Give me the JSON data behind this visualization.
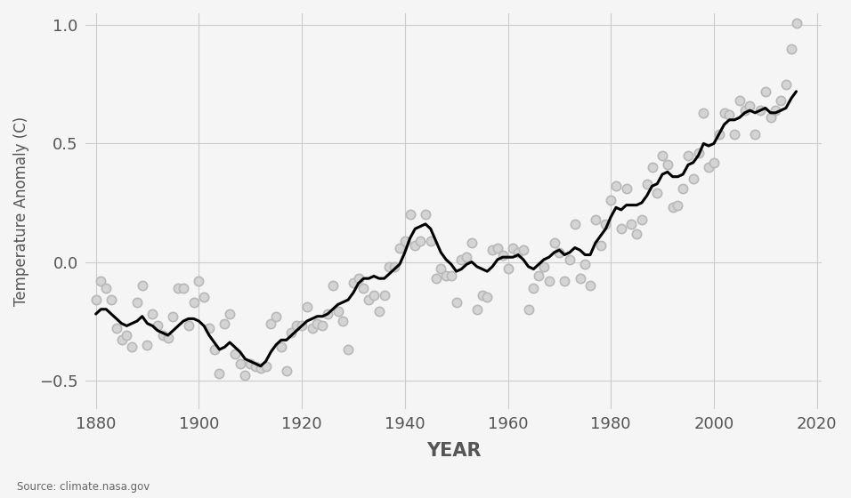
{
  "title": "",
  "xlabel": "YEAR",
  "ylabel": "Temperature Anomaly (C)",
  "source_text": "Source: climate.nasa.gov",
  "xlim": [
    1878,
    2021
  ],
  "ylim": [
    -0.62,
    1.05
  ],
  "yticks": [
    -0.5,
    0.0,
    0.5,
    1.0
  ],
  "xticks": [
    1880,
    1900,
    1920,
    1940,
    1960,
    1980,
    2000,
    2020
  ],
  "annual_data": {
    "years": [
      1880,
      1881,
      1882,
      1883,
      1884,
      1885,
      1886,
      1887,
      1888,
      1889,
      1890,
      1891,
      1892,
      1893,
      1894,
      1895,
      1896,
      1897,
      1898,
      1899,
      1900,
      1901,
      1902,
      1903,
      1904,
      1905,
      1906,
      1907,
      1908,
      1909,
      1910,
      1911,
      1912,
      1913,
      1914,
      1915,
      1916,
      1917,
      1918,
      1919,
      1920,
      1921,
      1922,
      1923,
      1924,
      1925,
      1926,
      1927,
      1928,
      1929,
      1930,
      1931,
      1932,
      1933,
      1934,
      1935,
      1936,
      1937,
      1938,
      1939,
      1940,
      1941,
      1942,
      1943,
      1944,
      1945,
      1946,
      1947,
      1948,
      1949,
      1950,
      1951,
      1952,
      1953,
      1954,
      1955,
      1956,
      1957,
      1958,
      1959,
      1960,
      1961,
      1962,
      1963,
      1964,
      1965,
      1966,
      1967,
      1968,
      1969,
      1970,
      1971,
      1972,
      1973,
      1974,
      1975,
      1976,
      1977,
      1978,
      1979,
      1980,
      1981,
      1982,
      1983,
      1984,
      1985,
      1986,
      1987,
      1988,
      1989,
      1990,
      1991,
      1992,
      1993,
      1994,
      1995,
      1996,
      1997,
      1998,
      1999,
      2000,
      2001,
      2002,
      2003,
      2004,
      2005,
      2006,
      2007,
      2008,
      2009,
      2010,
      2011,
      2012,
      2013,
      2014,
      2015,
      2016
    ],
    "anomalies": [
      -0.16,
      -0.08,
      -0.11,
      -0.16,
      -0.28,
      -0.33,
      -0.31,
      -0.36,
      -0.17,
      -0.1,
      -0.35,
      -0.22,
      -0.27,
      -0.31,
      -0.32,
      -0.23,
      -0.11,
      -0.11,
      -0.27,
      -0.17,
      -0.08,
      -0.15,
      -0.28,
      -0.37,
      -0.47,
      -0.26,
      -0.22,
      -0.39,
      -0.43,
      -0.48,
      -0.43,
      -0.44,
      -0.45,
      -0.44,
      -0.26,
      -0.23,
      -0.36,
      -0.46,
      -0.3,
      -0.27,
      -0.27,
      -0.19,
      -0.28,
      -0.26,
      -0.27,
      -0.22,
      -0.1,
      -0.21,
      -0.25,
      -0.37,
      -0.09,
      -0.07,
      -0.11,
      -0.16,
      -0.14,
      -0.21,
      -0.14,
      -0.02,
      -0.02,
      0.06,
      0.09,
      0.2,
      0.07,
      0.09,
      0.2,
      0.09,
      -0.07,
      -0.03,
      -0.06,
      -0.06,
      -0.17,
      0.01,
      0.02,
      0.08,
      -0.2,
      -0.14,
      -0.15,
      0.05,
      0.06,
      0.03,
      -0.03,
      0.06,
      0.04,
      0.05,
      -0.2,
      -0.11,
      -0.06,
      -0.02,
      -0.08,
      0.08,
      0.04,
      -0.08,
      0.01,
      0.16,
      -0.07,
      -0.01,
      -0.1,
      0.18,
      0.07,
      0.16,
      0.26,
      0.32,
      0.14,
      0.31,
      0.16,
      0.12,
      0.18,
      0.33,
      0.4,
      0.29,
      0.45,
      0.41,
      0.23,
      0.24,
      0.31,
      0.45,
      0.35,
      0.46,
      0.63,
      0.4,
      0.42,
      0.54,
      0.63,
      0.62,
      0.54,
      0.68,
      0.64,
      0.66,
      0.54,
      0.64,
      0.72,
      0.61,
      0.64,
      0.68,
      0.75,
      0.9,
      1.01
    ]
  },
  "smooth_data": {
    "years": [
      1880,
      1881,
      1882,
      1883,
      1884,
      1885,
      1886,
      1887,
      1888,
      1889,
      1890,
      1891,
      1892,
      1893,
      1894,
      1895,
      1896,
      1897,
      1898,
      1899,
      1900,
      1901,
      1902,
      1903,
      1904,
      1905,
      1906,
      1907,
      1908,
      1909,
      1910,
      1911,
      1912,
      1913,
      1914,
      1915,
      1916,
      1917,
      1918,
      1919,
      1920,
      1921,
      1922,
      1923,
      1924,
      1925,
      1926,
      1927,
      1928,
      1929,
      1930,
      1931,
      1932,
      1933,
      1934,
      1935,
      1936,
      1937,
      1938,
      1939,
      1940,
      1941,
      1942,
      1943,
      1944,
      1945,
      1946,
      1947,
      1948,
      1949,
      1950,
      1951,
      1952,
      1953,
      1954,
      1955,
      1956,
      1957,
      1958,
      1959,
      1960,
      1961,
      1962,
      1963,
      1964,
      1965,
      1966,
      1967,
      1968,
      1969,
      1970,
      1971,
      1972,
      1973,
      1974,
      1975,
      1976,
      1977,
      1978,
      1979,
      1980,
      1981,
      1982,
      1983,
      1984,
      1985,
      1986,
      1987,
      1988,
      1989,
      1990,
      1991,
      1992,
      1993,
      1994,
      1995,
      1996,
      1997,
      1998,
      1999,
      2000,
      2001,
      2002,
      2003,
      2004,
      2005,
      2006,
      2007,
      2008,
      2009,
      2010,
      2011,
      2012,
      2013,
      2014,
      2015,
      2016
    ],
    "anomalies": [
      -0.22,
      -0.2,
      -0.2,
      -0.22,
      -0.24,
      -0.26,
      -0.27,
      -0.26,
      -0.25,
      -0.23,
      -0.26,
      -0.27,
      -0.29,
      -0.3,
      -0.31,
      -0.29,
      -0.27,
      -0.25,
      -0.24,
      -0.24,
      -0.25,
      -0.27,
      -0.31,
      -0.34,
      -0.37,
      -0.36,
      -0.34,
      -0.36,
      -0.38,
      -0.41,
      -0.42,
      -0.43,
      -0.44,
      -0.42,
      -0.38,
      -0.35,
      -0.33,
      -0.33,
      -0.31,
      -0.29,
      -0.27,
      -0.25,
      -0.24,
      -0.23,
      -0.23,
      -0.22,
      -0.2,
      -0.18,
      -0.17,
      -0.16,
      -0.13,
      -0.09,
      -0.07,
      -0.07,
      -0.06,
      -0.07,
      -0.07,
      -0.05,
      -0.03,
      -0.01,
      0.04,
      0.1,
      0.14,
      0.15,
      0.16,
      0.14,
      0.09,
      0.04,
      0.01,
      -0.01,
      -0.04,
      -0.03,
      -0.01,
      0.0,
      -0.02,
      -0.03,
      -0.04,
      -0.02,
      0.01,
      0.02,
      0.02,
      0.02,
      0.03,
      0.01,
      -0.02,
      -0.03,
      -0.01,
      0.01,
      0.02,
      0.04,
      0.05,
      0.03,
      0.04,
      0.06,
      0.05,
      0.03,
      0.03,
      0.08,
      0.11,
      0.14,
      0.19,
      0.23,
      0.22,
      0.24,
      0.24,
      0.24,
      0.25,
      0.28,
      0.32,
      0.33,
      0.37,
      0.38,
      0.36,
      0.36,
      0.37,
      0.41,
      0.42,
      0.45,
      0.5,
      0.49,
      0.5,
      0.54,
      0.58,
      0.6,
      0.6,
      0.61,
      0.63,
      0.64,
      0.63,
      0.64,
      0.65,
      0.63,
      0.63,
      0.64,
      0.65,
      0.69,
      0.72
    ]
  },
  "scatter_face_color": "#d4d4d4",
  "scatter_edge_color": "#b8b8b8",
  "line_color": "#000000",
  "background_color": "#f5f5f5",
  "plot_bg_color": "#f5f5f5",
  "grid_color": "#cccccc",
  "tick_label_color": "#555555",
  "axis_label_color": "#555555",
  "source_color": "#666666",
  "scatter_size": 55,
  "scatter_linewidth": 1.2,
  "line_width": 2.2
}
